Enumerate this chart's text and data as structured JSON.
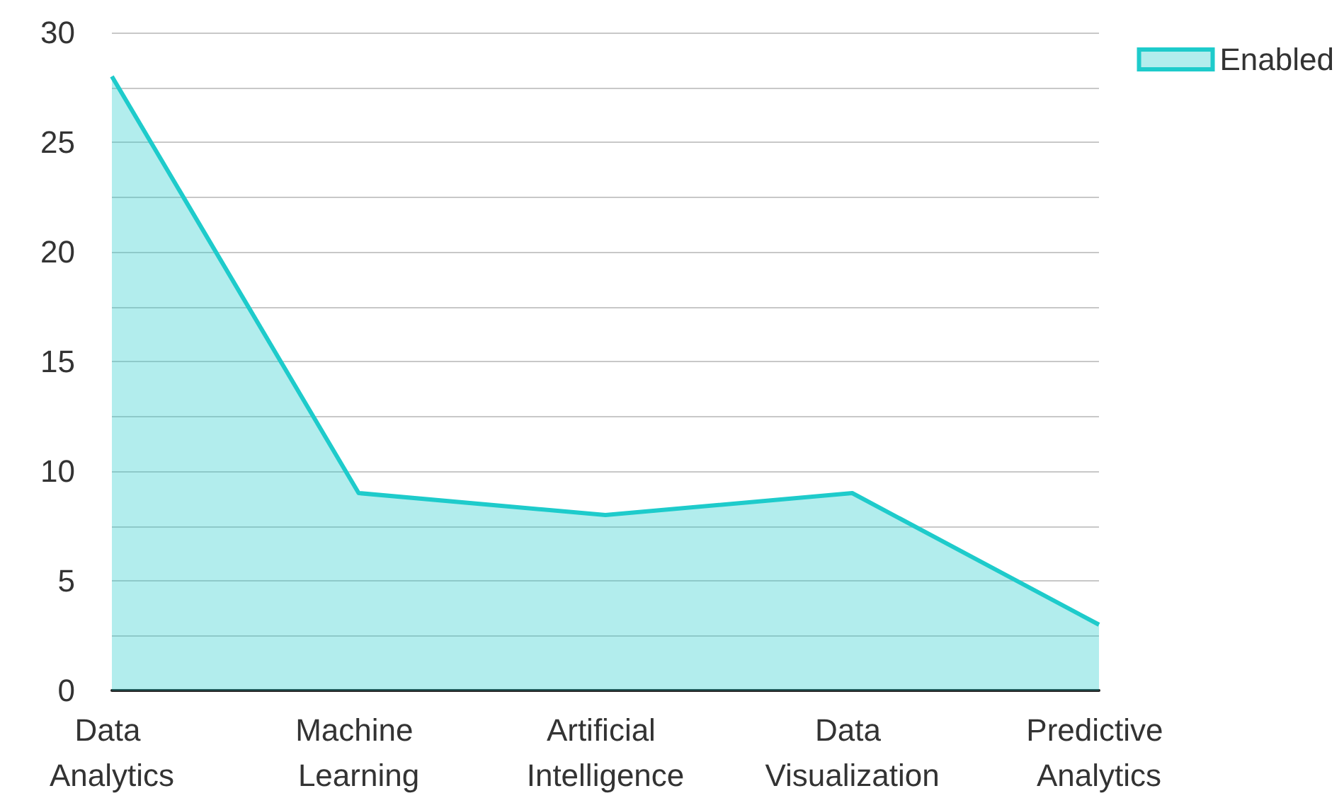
{
  "chart_data": {
    "type": "area",
    "categories": [
      "Data Analytics",
      "Machine Learning",
      "Artificial Intelligence",
      "Data Visualization",
      "Predictive Analytics"
    ],
    "series": [
      {
        "name": "Enabled",
        "color": "#1ecbcb",
        "values": [
          28,
          9,
          8,
          9,
          3
        ]
      }
    ],
    "ylim": [
      0,
      30
    ],
    "yticks": [
      0,
      {
        "value": 2.5,
        "label": null
      },
      5,
      {
        "value": 7.5,
        "label": null
      },
      10,
      {
        "value": 12.5,
        "label": null
      },
      15,
      {
        "value": 17.5,
        "label": null
      },
      20,
      {
        "value": 22.5,
        "label": null
      },
      25,
      {
        "value": 27.5,
        "label": null
      },
      30
    ],
    "grid": "y",
    "legend": "top right"
  }
}
